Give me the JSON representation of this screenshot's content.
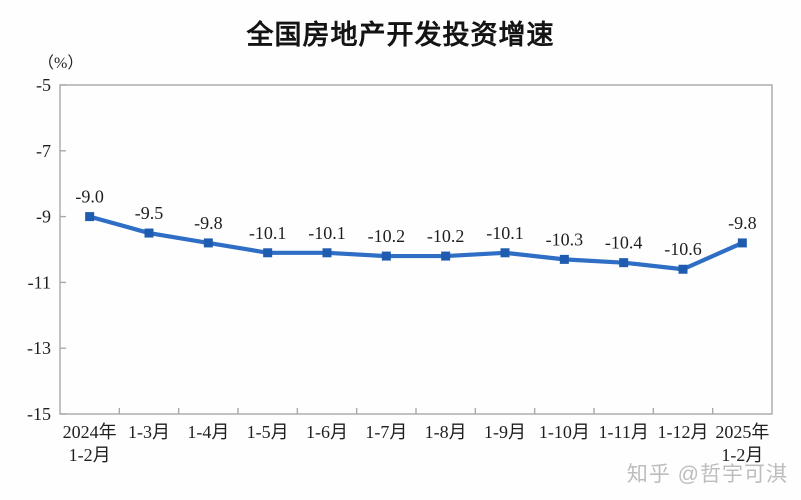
{
  "watermark": "知乎 @哲宇可淇",
  "chart_data": {
    "type": "line",
    "title": "全国房地产开发投资增速",
    "unit_label": "（%）",
    "categories": [
      "2024年\n1-2月",
      "1-3月",
      "1-4月",
      "1-5月",
      "1-6月",
      "1-7月",
      "1-8月",
      "1-9月",
      "1-10月",
      "1-11月",
      "1-12月",
      "2025年\n1-2月"
    ],
    "values": [
      -9.0,
      -9.5,
      -9.8,
      -10.1,
      -10.1,
      -10.2,
      -10.2,
      -10.1,
      -10.3,
      -10.4,
      -10.6,
      -9.8
    ],
    "data_labels": [
      "-9.0",
      "-9.5",
      "-9.8",
      "-10.1",
      "-10.1",
      "-10.2",
      "-10.2",
      "-10.1",
      "-10.3",
      "-10.4",
      "-10.6",
      "-9.8"
    ],
    "ylim": [
      -15,
      -5
    ],
    "yticks": [
      -5,
      -7,
      -9,
      -11,
      -13,
      -15
    ],
    "grid": false,
    "legend": false,
    "line_color": "#2e6ec4",
    "marker_color": "#1f5cb0",
    "axis_color": "#a9a9a9",
    "text_color": "#1f1f1f",
    "title_color": "#141414",
    "watermark_color": "#bdbdbd"
  }
}
